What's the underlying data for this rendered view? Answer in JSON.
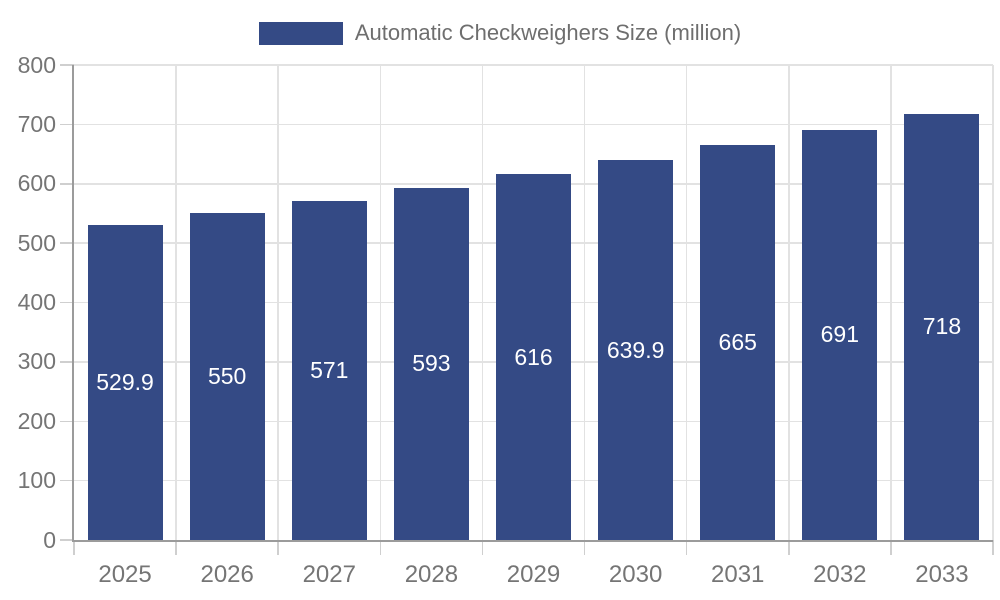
{
  "chart_data": {
    "type": "bar",
    "title": "Automatic Checkweighers Size (million)",
    "categories": [
      "2025",
      "2026",
      "2027",
      "2028",
      "2029",
      "2030",
      "2031",
      "2032",
      "2033"
    ],
    "values": [
      529.9,
      550,
      571,
      593,
      616,
      639.9,
      665,
      691,
      718
    ],
    "value_labels": [
      "529.9",
      "550",
      "571",
      "593",
      "616",
      "639.9",
      "665",
      "691",
      "718"
    ],
    "xlabel": "",
    "ylabel": "",
    "ylim": [
      0,
      800
    ],
    "ytick_step": 100,
    "ytick_labels": [
      "0",
      "100",
      "200",
      "300",
      "400",
      "500",
      "600",
      "700",
      "800"
    ],
    "grid": true,
    "legend_position": "top",
    "colors": {
      "bar": "#344A85",
      "axis": "#9B9B9B",
      "grid": "#E2E2E2",
      "tick": "#CFCFCF",
      "axis_text": "#757575",
      "legend_text": "#6E6E6E",
      "value_text": "#FFFFFF",
      "background": "#FFFFFF"
    }
  }
}
